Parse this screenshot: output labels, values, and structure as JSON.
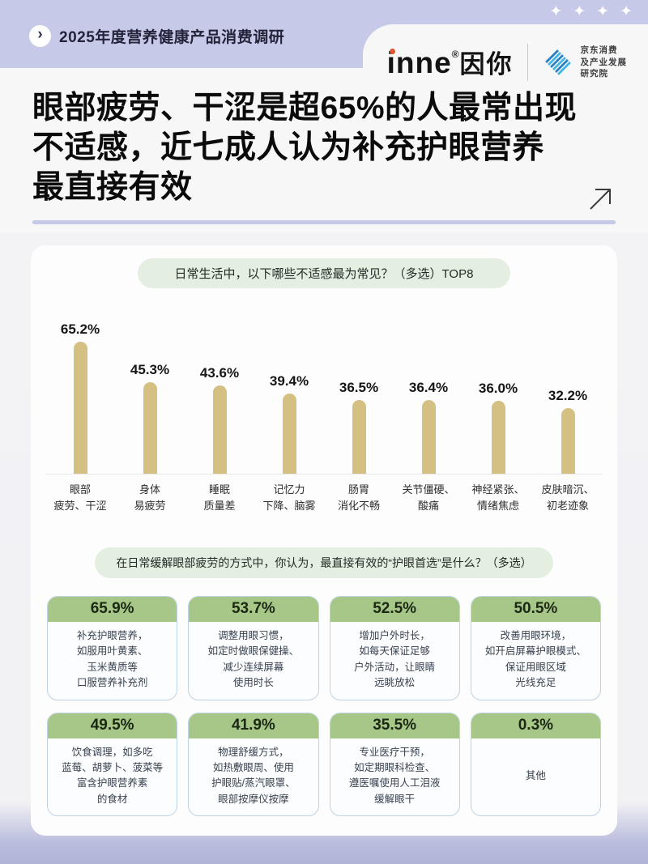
{
  "header": {
    "breadcrumb": "2025年度营养健康产品消费调研"
  },
  "brand": {
    "logo_text": "inne",
    "registered_mark": "®",
    "logo_suffix": "因你",
    "institute_lines": [
      "京东消费",
      "及产业发展",
      "研究院"
    ]
  },
  "headline": {
    "lines": [
      "眼部疲劳、干涩是超65%的人最常出现",
      "不适感，近七成人认为补充护眼营养",
      "最直接有效"
    ]
  },
  "chart_data": [
    {
      "type": "bar",
      "title": "日常生活中，以下哪些不适感最为常见？（多选）TOP8",
      "categories": [
        "眼部疲劳、干涩",
        "身体易疲劳",
        "睡眠质量差",
        "记忆力下降、脑雾",
        "肠胃消化不畅",
        "关节僵硬、酸痛",
        "神经紧张、情绪焦虑",
        "皮肤暗沉、初老迹象"
      ],
      "category_lines": [
        [
          "眼部",
          "疲劳、干涩"
        ],
        [
          "身体",
          "易疲劳"
        ],
        [
          "睡眠",
          "质量差"
        ],
        [
          "记忆力",
          "下降、脑雾"
        ],
        [
          "肠胃",
          "消化不畅"
        ],
        [
          "关节僵硬、",
          "酸痛"
        ],
        [
          "神经紧张、",
          "情绪焦虑"
        ],
        [
          "皮肤暗沉、",
          "初老迹象"
        ]
      ],
      "values": [
        65.2,
        45.3,
        43.6,
        39.4,
        36.5,
        36.4,
        36.0,
        32.2
      ],
      "value_labels": [
        "65.2%",
        "45.3%",
        "43.6%",
        "39.4%",
        "36.5%",
        "36.4%",
        "36.0%",
        "32.2%"
      ],
      "ylim": [
        0,
        70
      ],
      "grid": false,
      "bar_color": "#d5c084"
    },
    {
      "type": "bar",
      "layout": "card-grid",
      "title": "在日常缓解眼部疲劳的方式中，你认为，最直接有效的“护眼首选”是什么？（多选）",
      "values": [
        65.9,
        53.7,
        52.5,
        50.5,
        49.5,
        41.9,
        35.5,
        0.3
      ],
      "cards": [
        {
          "percent": "65.9%",
          "lines": [
            "补充护眼营养，",
            "如服用叶黄素、",
            "玉米黄质等",
            "口服营养补充剂"
          ]
        },
        {
          "percent": "53.7%",
          "lines": [
            "调整用眼习惯，",
            "如定时做眼保健操、",
            "减少连续屏幕",
            "使用时长"
          ]
        },
        {
          "percent": "52.5%",
          "lines": [
            "增加户外时长，",
            "如每天保证足够",
            "户外活动，让眼睛",
            "远眺放松"
          ]
        },
        {
          "percent": "50.5%",
          "lines": [
            "改善用眼环境，",
            "如开启屏幕护眼模式、",
            "保证用眼区域",
            "光线充足"
          ]
        },
        {
          "percent": "49.5%",
          "lines": [
            "饮食调理，如多吃",
            "蓝莓、胡萝卜、菠菜等",
            "富含护眼营养素",
            "的食材"
          ]
        },
        {
          "percent": "41.9%",
          "lines": [
            "物理舒缓方式，",
            "如热敷眼周、使用",
            "护眼贴/蒸汽眼罩、",
            "眼部按摩仪按摩"
          ]
        },
        {
          "percent": "35.5%",
          "lines": [
            "专业医疗干预，",
            "如定期眼科检查、",
            "遵医嘱使用人工泪液",
            "缓解眼干"
          ]
        },
        {
          "percent": "0.3%",
          "lines": [
            "其他"
          ]
        }
      ]
    }
  ],
  "icons": {
    "sparkle": "✦",
    "chevron_right": "›"
  },
  "colors": {
    "lavender_top": "#c6c9e7",
    "lavender_bottom": "#b1b4d7",
    "panel_white": "#f7f7f8",
    "chart_panel_white": "#fdfdfe",
    "pill_green": "#e4efe2",
    "bar_tan": "#d5c084",
    "card_header_green": "#a6c787",
    "card_border_blue": "#c0d3e2",
    "underline_lavender": "#c6c9e8",
    "inne_dot_orange": "#e0562c"
  }
}
